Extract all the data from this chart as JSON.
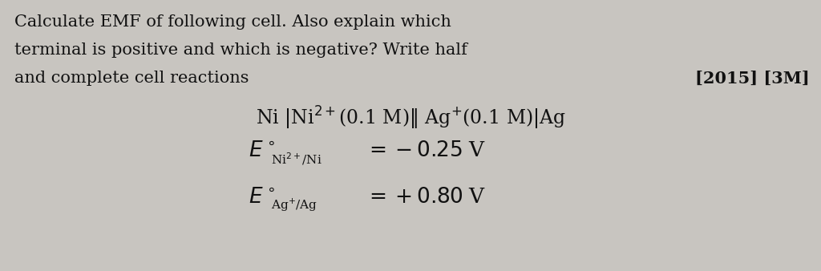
{
  "bg_color": "#c8c5c0",
  "text_color": "#111111",
  "line1": "Calculate EMF of following cell. Also explain which",
  "line2": "terminal is positive and which is negative? Write half",
  "line3": "and complete cell reactions",
  "year_mark": "[2015] [3M]",
  "fontsize_body": 15,
  "fontsize_cell": 17,
  "fontsize_eq_main": 19,
  "fontsize_eq_sub": 11,
  "fontsize_eq_val": 19
}
